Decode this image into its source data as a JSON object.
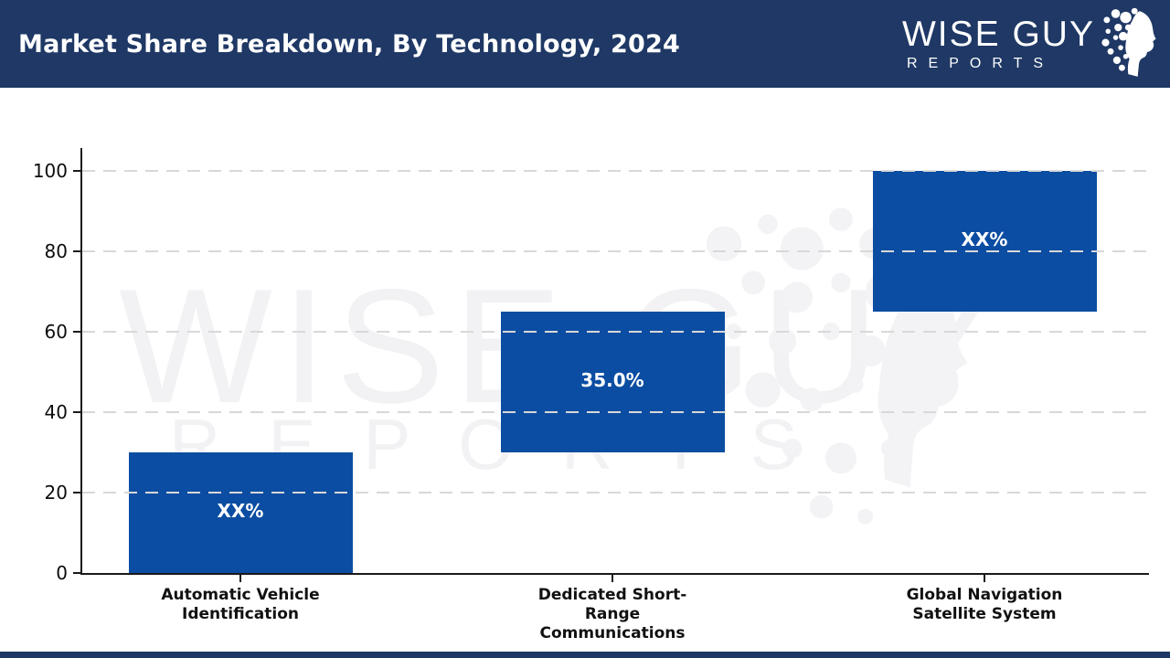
{
  "header": {
    "title": "Market Share Breakdown, By Technology, 2024",
    "logo": {
      "wordmark": "WISE GUY",
      "subtitle": "REPORTS"
    },
    "bg_color": "#1f3865"
  },
  "watermark": {
    "wordmark": "WISE GUY",
    "subtitle": "REPORTS"
  },
  "chart_data": {
    "type": "bar",
    "subtype": "floating-range-bars",
    "title": "Market Share Breakdown, By Technology, 2024",
    "categories": [
      "Automatic Vehicle Identification",
      "Dedicated Short-Range Communications",
      "Global Navigation Satellite System"
    ],
    "category_label_lines": [
      [
        "Automatic Vehicle",
        "Identification"
      ],
      [
        "Dedicated Short-",
        "Range",
        "Communications"
      ],
      [
        "Global Navigation",
        "Satellite System"
      ]
    ],
    "segments": [
      {
        "category": "Automatic Vehicle Identification",
        "start": 0,
        "end": 30,
        "label": "XX%"
      },
      {
        "category": "Dedicated Short-Range Communications",
        "start": 30,
        "end": 65,
        "label": "35.0%"
      },
      {
        "category": "Global Navigation Satellite System",
        "start": 65,
        "end": 100,
        "label": "XX%"
      }
    ],
    "ylim": [
      0,
      100
    ],
    "yticks": [
      0,
      20,
      40,
      60,
      80,
      100
    ],
    "grid": "horizontal-dashed",
    "legend": "none",
    "colors": {
      "bar": "#0b4da2",
      "bar_label": "#ffffff",
      "axis": "#1a1a1a",
      "gridline": "#d8d8d8",
      "tick_label": "#0d0d0d"
    }
  }
}
